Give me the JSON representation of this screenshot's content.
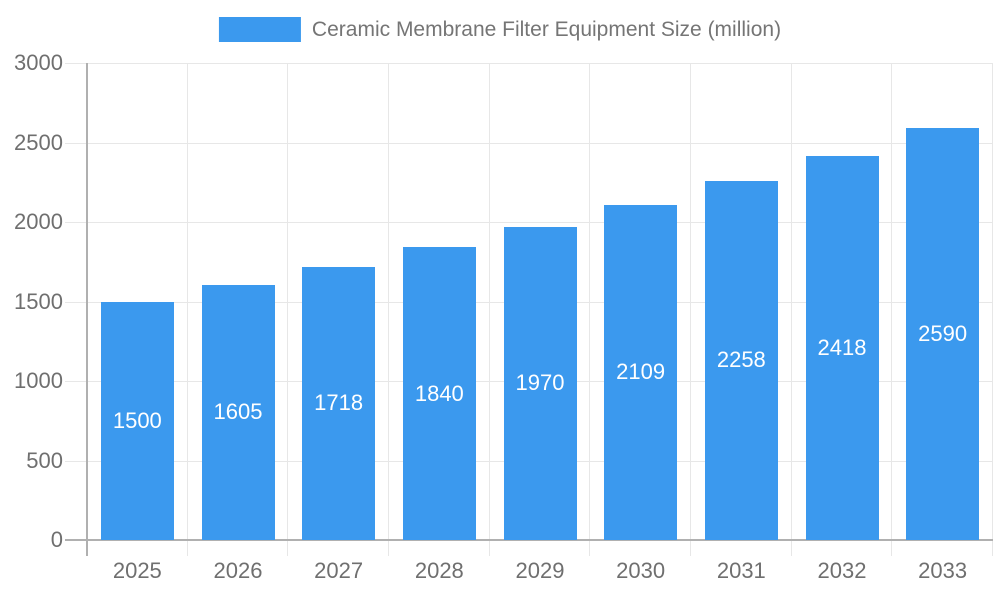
{
  "legend": {
    "label": "Ceramic Membrane Filter Equipment Size (million)"
  },
  "colors": {
    "bar": "#3b99ee",
    "grid": "#e7e7e7",
    "axis": "#b0b0b0",
    "tick_text": "#6f6f6f",
    "legend_text": "#757575",
    "value_label_text": "#ffffff"
  },
  "chart_data": {
    "type": "bar",
    "title": "Ceramic Membrane Filter Equipment Size (million)",
    "categories": [
      "2025",
      "2026",
      "2027",
      "2028",
      "2029",
      "2030",
      "2031",
      "2032",
      "2033"
    ],
    "values": [
      1500,
      1605,
      1718,
      1840,
      1970,
      2109,
      2258,
      2418,
      2590
    ],
    "xlabel": "",
    "ylabel": "",
    "ylim": [
      0,
      3000
    ],
    "yticks": [
      0,
      500,
      1000,
      1500,
      2000,
      2500,
      3000
    ],
    "grid": true,
    "legend_position": "top-center",
    "value_labels": "inside-center"
  }
}
